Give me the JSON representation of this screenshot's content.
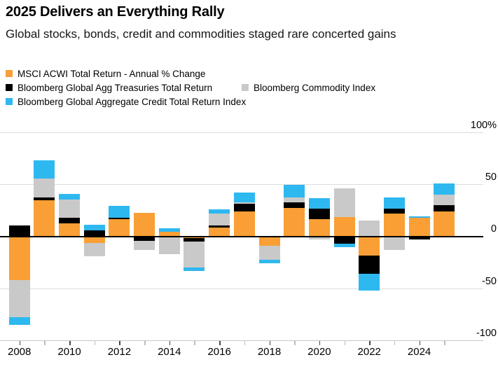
{
  "header": {
    "title": "2025 Delivers an Everything Rally",
    "subtitle": "Global stocks, bonds, credit and commodities staged rare concerted gains"
  },
  "legend": {
    "items": [
      {
        "key": "acwi",
        "label": "MSCI ACWI Total Return - Annual % Change",
        "color": "#F99F35"
      },
      {
        "key": "treasuries",
        "label": "Bloomberg Global Agg Treasuries Total Return",
        "color": "#000000"
      },
      {
        "key": "commodity",
        "label": "Bloomberg Commodity Index",
        "color": "#C9C9C9"
      },
      {
        "key": "credit",
        "label": "Bloomberg Global Aggregate Credit Total Return Index",
        "color": "#2EB8F0"
      }
    ],
    "rows": [
      [
        0
      ],
      [
        1,
        2
      ],
      [
        3
      ]
    ]
  },
  "chart_data": {
    "type": "bar",
    "stacked": true,
    "units": "%",
    "x": [
      2008,
      2009,
      2010,
      2011,
      2012,
      2013,
      2014,
      2015,
      2016,
      2017,
      2018,
      2019,
      2020,
      2021,
      2022,
      2023,
      2024,
      2025
    ],
    "series": [
      {
        "key": "acwi",
        "name": "MSCI ACWI Total Return - Annual % Change",
        "color": "#F99F35",
        "values": [
          -42,
          34.5,
          12,
          -6.5,
          16.5,
          22.5,
          4,
          -2,
          8.5,
          24,
          -9,
          27,
          16.5,
          18.5,
          -18.5,
          22,
          17.5,
          23.5
        ]
      },
      {
        "key": "treasuries",
        "name": "Bloomberg Global Agg Treasuries Total Return",
        "color": "#000000",
        "values": [
          10,
          2.5,
          6,
          5.5,
          1.5,
          -4.5,
          0,
          -3.5,
          1.5,
          7,
          0,
          5.5,
          10,
          -7.5,
          -17.5,
          4.5,
          -3.5,
          6.5
        ]
      },
      {
        "key": "commodity",
        "name": "Bloomberg Commodity Index",
        "color": "#C9C9C9",
        "values": [
          -36,
          18.5,
          17,
          -13,
          -1,
          -8.5,
          -17.5,
          -24.5,
          12,
          1.5,
          -13.5,
          5,
          -3.5,
          27.5,
          15,
          -13,
          0,
          10
        ]
      },
      {
        "key": "credit",
        "name": "Bloomberg Global Aggregate Credit Total Return Index",
        "color": "#2EB8F0",
        "values": [
          -7.5,
          17.5,
          5.5,
          5.5,
          11,
          0,
          3.5,
          -3.5,
          3.5,
          9.5,
          -3.5,
          11.5,
          10,
          -3,
          -16.5,
          10.5,
          1.5,
          10.5
        ]
      }
    ],
    "ylim": [
      -100,
      100
    ],
    "yticks": [
      {
        "value": 100,
        "label": "100%"
      },
      {
        "value": 50,
        "label": "50"
      },
      {
        "value": 0,
        "label": "0"
      },
      {
        "value": -50,
        "label": "-50"
      },
      {
        "value": -100,
        "label": "-100"
      }
    ],
    "xtick_labeled_years": [
      2008,
      2010,
      2012,
      2014,
      2016,
      2018,
      2020,
      2022,
      2024
    ],
    "grid": true,
    "legend_position": "top",
    "y_axis_side": "right"
  },
  "colors": {
    "background": "#ffffff",
    "gridline": "#dcdcdc",
    "zero_line": "#000000",
    "axis_line": "#c8c8c8"
  }
}
